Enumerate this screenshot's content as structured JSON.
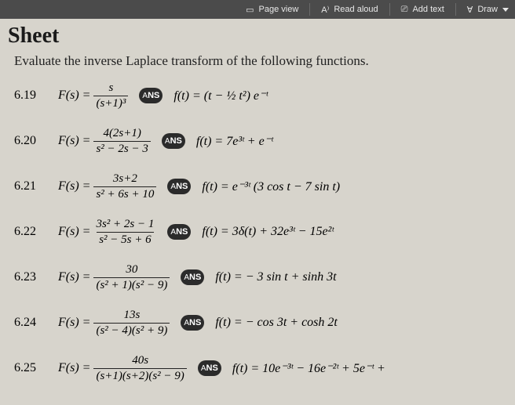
{
  "toolbar": {
    "page_view": "Page view",
    "read_aloud": "Read aloud",
    "add_text": "Add text",
    "draw": "Draw",
    "colors": {
      "bg": "#4b4b4b",
      "text": "#e8e8e8"
    }
  },
  "page": {
    "title": "Sheet",
    "instruction": "Evaluate the inverse Laplace transform of the following functions.",
    "background_color": "#d7d4cc"
  },
  "problems": [
    {
      "num": "6.19",
      "F_label": "F(s) =",
      "F_num": "s",
      "F_den": "(s+1)³",
      "ans_label": "ANS",
      "f_expr": "f(t) = (t − ½ t²) e⁻ᵗ"
    },
    {
      "num": "6.20",
      "F_label": "F(s) =",
      "F_num": "4(2s+1)",
      "F_den": "s² − 2s − 3",
      "ans_label": "ANS",
      "f_expr": "f(t) = 7e³ᵗ + e⁻ᵗ"
    },
    {
      "num": "6.21",
      "F_label": "F(s) =",
      "F_num": "3s+2",
      "F_den": "s² + 6s + 10",
      "ans_label": "ANS",
      "f_expr": "f(t) = e⁻³ᵗ (3 cos t − 7 sin t)"
    },
    {
      "num": "6.22",
      "F_label": "F(s) =",
      "F_num": "3s² + 2s − 1",
      "F_den": "s² − 5s + 6",
      "ans_label": "ANS",
      "f_expr": "f(t) = 3δ(t) + 32e³ᵗ − 15e²ᵗ"
    },
    {
      "num": "6.23",
      "F_label": "F(s) =",
      "F_num": "30",
      "F_den": "(s² + 1)(s² − 9)",
      "ans_label": "ANS",
      "f_expr": "f(t) = − 3 sin t + sinh 3t"
    },
    {
      "num": "6.24",
      "F_label": "F(s) =",
      "F_num": "13s",
      "F_den": "(s² − 4)(s² + 9)",
      "ans_label": "ANS",
      "f_expr": "f(t) = − cos 3t + cosh 2t"
    },
    {
      "num": "6.25",
      "F_label": "F(s) =",
      "F_num": "40s",
      "F_den": "(s+1)(s+2)(s² − 9)",
      "ans_label": "ANS",
      "f_expr": "f(t) = 10e⁻³ᵗ − 16e⁻²ᵗ + 5e⁻ᵗ +"
    }
  ]
}
